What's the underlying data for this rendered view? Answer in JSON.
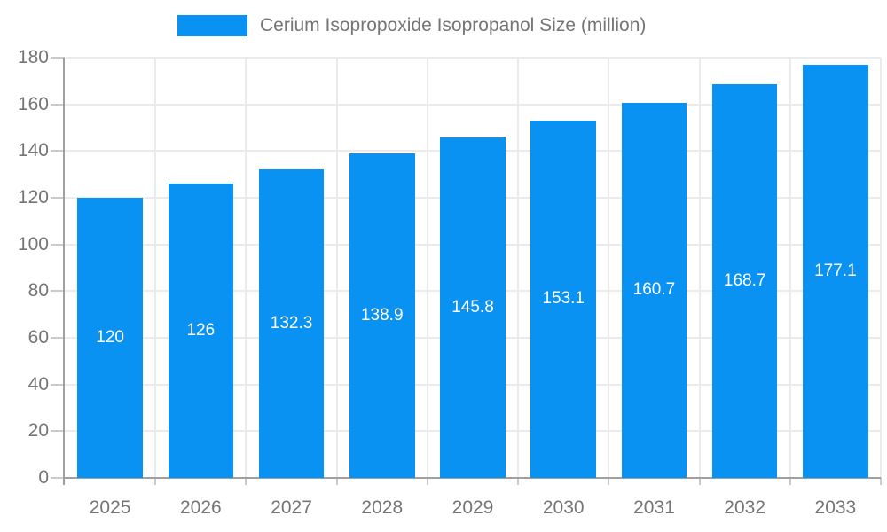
{
  "legend": {
    "label": "Cerium Isopropoxide Isopropanol Size (million)"
  },
  "colors": {
    "bar": "#0992f2",
    "grid": "#ebebeb",
    "tick": "#cbcbcb",
    "axis": "#a0a0a0",
    "axis_text": "#757575",
    "bar_label_text": "#ffffff",
    "background": "#ffffff"
  },
  "chart_data": {
    "type": "bar",
    "title": "Cerium Isopropoxide Isopropanol Size (million)",
    "xlabel": "",
    "ylabel": "",
    "categories": [
      "2025",
      "2026",
      "2027",
      "2028",
      "2029",
      "2030",
      "2031",
      "2032",
      "2033"
    ],
    "values": [
      120,
      126,
      132.3,
      138.9,
      145.8,
      153.1,
      160.7,
      168.7,
      177.1
    ],
    "value_labels": [
      "120",
      "126",
      "132.3",
      "138.9",
      "145.8",
      "153.1",
      "160.7",
      "168.7",
      "177.1"
    ],
    "ylim": [
      0,
      180
    ],
    "yticks": [
      0,
      20,
      40,
      60,
      80,
      100,
      120,
      140,
      160,
      180
    ],
    "grid": true,
    "legend_position": "top"
  }
}
